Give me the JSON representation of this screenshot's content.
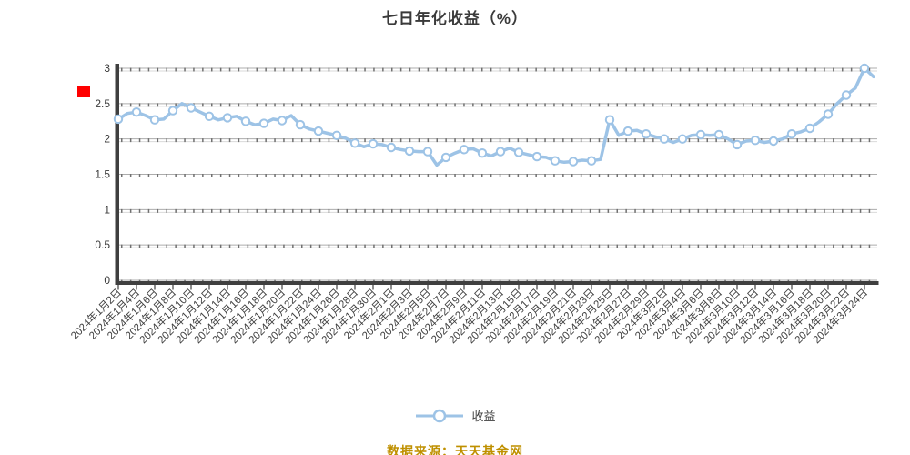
{
  "title": "七日年化收益（%）",
  "legend": {
    "series_label": "收益"
  },
  "footnote": "数据来源：天天基金网",
  "colors": {
    "line": "#9DC3E6",
    "marker_fill": "#FFFFFF",
    "axis": "#3F3F3F",
    "grid_major": "#ACACAC",
    "grid_minor": "#D9D9D9",
    "grid_tick": "#707070",
    "red_marker": "#FF0000",
    "footnote": "#BF9000",
    "label_text": "#3A3A3A"
  },
  "chart_data": {
    "type": "line",
    "title": "七日年化收益（%）",
    "xlabel": "",
    "ylabel": "",
    "ylim": [
      0,
      3
    ],
    "yticks": [
      "0",
      "0.5",
      "1",
      "1.5",
      "2",
      "2.5",
      "3"
    ],
    "grid": "horizontal",
    "legend_position": "bottom",
    "marker_every": 2,
    "x_labels": [
      "2024年1月2日",
      "2024年1月4日",
      "2024年1月6日",
      "2024年1月8日",
      "2024年1月10日",
      "2024年1月12日",
      "2024年1月14日",
      "2024年1月16日",
      "2024年1月18日",
      "2024年1月20日",
      "2024年1月22日",
      "2024年1月24日",
      "2024年1月26日",
      "2024年1月28日",
      "2024年1月30日",
      "2024年2月1日",
      "2024年2月3日",
      "2024年2月5日",
      "2024年2月7日",
      "2024年2月9日",
      "2024年2月11日",
      "2024年2月13日",
      "2024年2月15日",
      "2024年2月17日",
      "2024年2月19日",
      "2024年2月21日",
      "2024年2月23日",
      "2024年2月25日",
      "2024年2月27日",
      "2024年2月29日",
      "2024年3月2日",
      "2024年3月4日",
      "2024年3月6日",
      "2024年3月8日",
      "2024年3月10日",
      "2024年3月12日",
      "2024年3月14日",
      "2024年3月16日",
      "2024年3月18日",
      "2024年3月20日",
      "2024年3月22日",
      "2024年3月24日"
    ],
    "series": [
      {
        "name": "收益",
        "values": [
          2.28,
          2.36,
          2.38,
          2.33,
          2.27,
          2.28,
          2.4,
          2.5,
          2.44,
          2.38,
          2.32,
          2.27,
          2.3,
          2.32,
          2.25,
          2.2,
          2.22,
          2.28,
          2.26,
          2.33,
          2.2,
          2.14,
          2.11,
          2.08,
          2.05,
          2.01,
          1.94,
          1.89,
          1.93,
          1.92,
          1.88,
          1.85,
          1.83,
          1.82,
          1.82,
          1.63,
          1.74,
          1.8,
          1.85,
          1.86,
          1.8,
          1.76,
          1.82,
          1.87,
          1.81,
          1.78,
          1.75,
          1.74,
          1.69,
          1.67,
          1.68,
          1.7,
          1.69,
          1.71,
          2.27,
          2.05,
          2.11,
          2.12,
          2.07,
          2.03,
          2.0,
          1.95,
          2.0,
          2.05,
          2.06,
          2.05,
          2.06,
          2.0,
          1.92,
          1.97,
          1.98,
          1.95,
          1.97,
          2.0,
          2.07,
          2.1,
          2.15,
          2.24,
          2.35,
          2.5,
          2.62,
          2.72,
          3.0,
          2.88
        ]
      }
    ],
    "annotations": [
      {
        "label": "red-square-marker",
        "approx_value": 2.75,
        "position": "left-of-y-axis"
      }
    ]
  }
}
